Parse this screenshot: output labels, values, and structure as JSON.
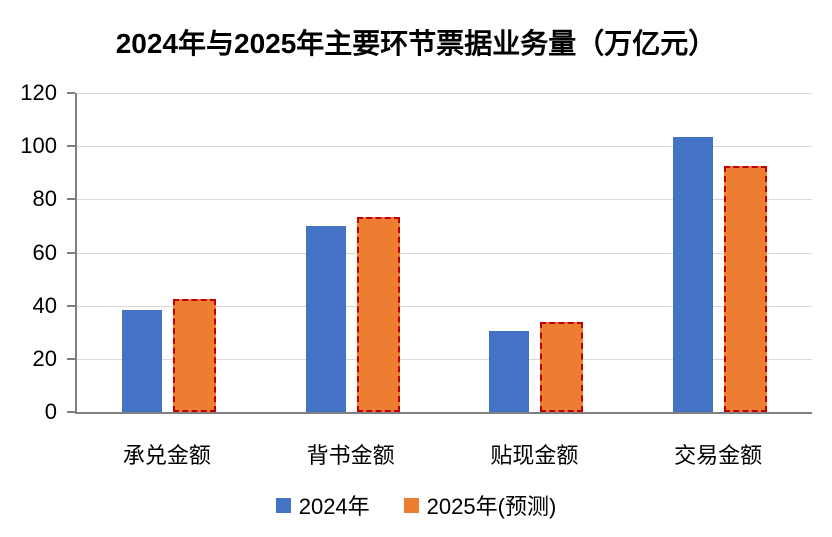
{
  "title": "2024年与2025年主要环节票据业务量（万亿元）",
  "chart_data": {
    "type": "bar",
    "title": "2024年与2025年主要环节票据业务量（万亿元）",
    "categories": [
      "承兑金额",
      "背书金额",
      "贴现金额",
      "交易金额"
    ],
    "series": [
      {
        "name": "2024年",
        "color": "#4472C4",
        "values": [
          38.5,
          70,
          30.5,
          103.5
        ]
      },
      {
        "name": "2025年(预测)",
        "color": "#ED7D31",
        "border_color": "#C00000",
        "border_style": "dashed",
        "values": [
          42.5,
          73.5,
          34,
          92.5
        ]
      }
    ],
    "xlabel": "",
    "ylabel": "",
    "ylim": [
      0,
      120
    ],
    "yticks": [
      0,
      20,
      40,
      60,
      80,
      100,
      120
    ],
    "grid": true,
    "legend_position": "bottom",
    "colors": {
      "gridline": "#D9D9D9",
      "axis": "#808080",
      "background": "#FFFFFF",
      "title_text": "#000000"
    }
  },
  "legend": {
    "items": [
      {
        "label": "2024年",
        "color": "#4472C4"
      },
      {
        "label": "2025年(预测)",
        "color": "#ED7D31"
      }
    ]
  }
}
